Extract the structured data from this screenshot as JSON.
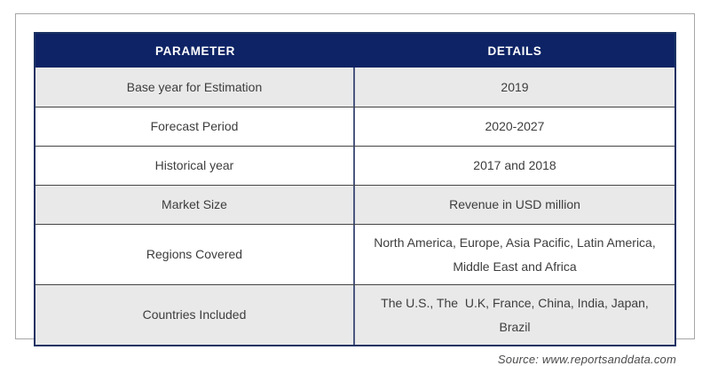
{
  "chart_data": {
    "type": "table",
    "columns": [
      "PARAMETER",
      "DETAILS"
    ],
    "rows": [
      [
        "Base year for Estimation",
        "2019"
      ],
      [
        "Forecast Period",
        "2020-2027"
      ],
      [
        "Historical year",
        "2017 and 2018"
      ],
      [
        "Market Size",
        "Revenue in USD million"
      ],
      [
        "Regions Covered",
        "North America, Europe, Asia Pacific, Latin America,\nMiddle East and Africa"
      ],
      [
        "Countries Included",
        "The U.S., The  U.K, France, China, India, Japan, Brazil"
      ]
    ],
    "shaded_row_indices": [
      0,
      3,
      5
    ],
    "source": "Source: www.reportsanddata.com"
  },
  "colors": {
    "header_bg": "#0d2365",
    "header_text": "#ffffff",
    "table_border": "#1a3263",
    "divider": "#4a5880",
    "row_border": "#454545",
    "row_bg": "#ffffff",
    "shaded_row_bg": "#e9e9e9",
    "card_border": "#a6a6a6",
    "text": "#3d3d3d",
    "source_text": "#4b4b4b"
  }
}
